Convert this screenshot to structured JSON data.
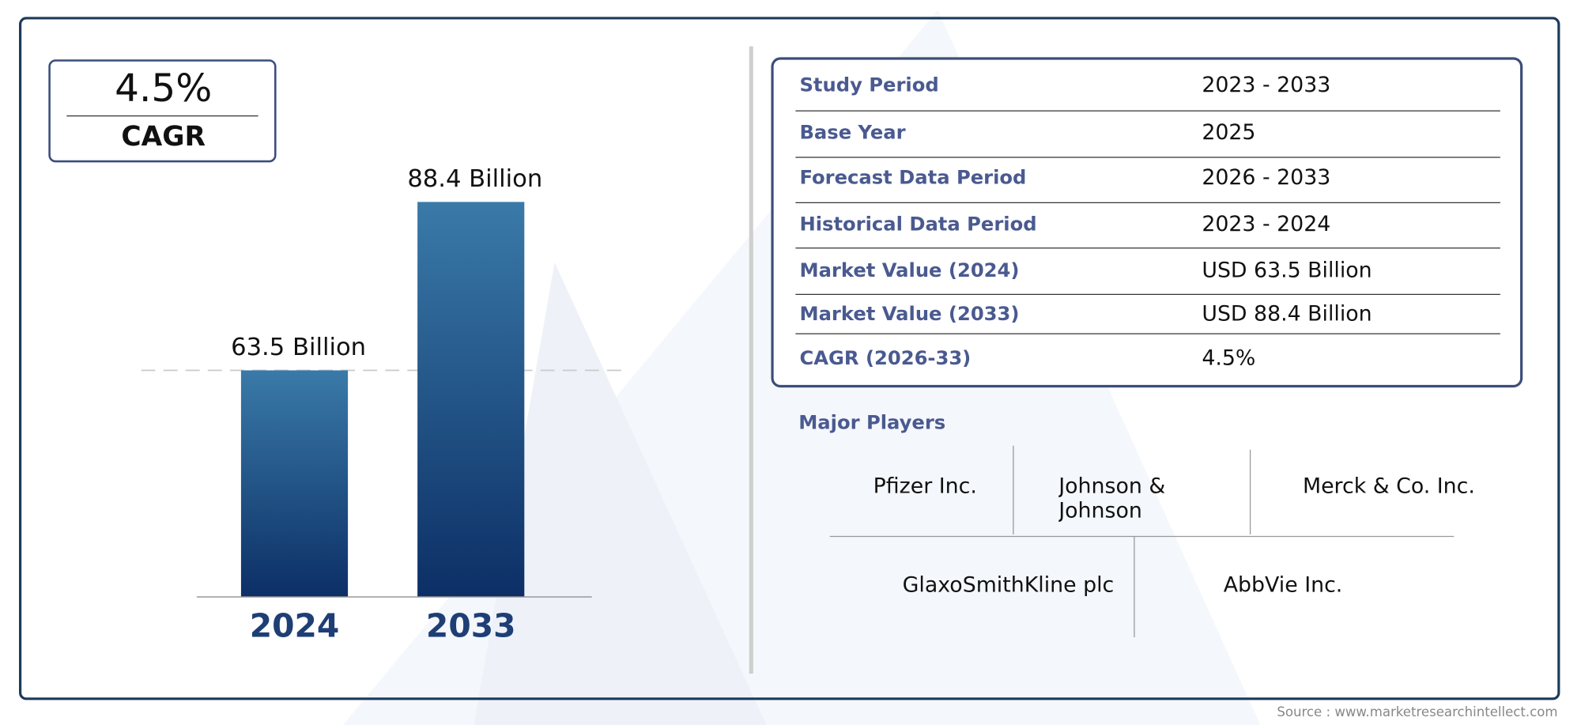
{
  "chart_data": {
    "type": "bar",
    "categories": [
      "2024",
      "2033"
    ],
    "values": [
      63.5,
      88.4
    ],
    "value_labels": [
      "63.5 Billion",
      "88.4 Billion"
    ],
    "ylim": [
      30,
      95
    ],
    "color": "#0c2f66"
  },
  "cagr": {
    "value": "4.5%",
    "label": "CAGR"
  },
  "table": {
    "rows": [
      [
        "Study Period",
        "2023 - 2033"
      ],
      [
        "Base Year",
        "2025"
      ],
      [
        "Forecast Data Period",
        "2026 - 2033"
      ],
      [
        "Historical Data Period",
        "2023 - 2024"
      ],
      [
        "Market Value (2024)",
        "USD 63.5 Billion"
      ],
      [
        "Market Value (2033)",
        "USD 88.4 Billion"
      ],
      [
        "CAGR (2026-33)",
        "4.5%"
      ]
    ]
  },
  "players": {
    "title": "Major Players",
    "names": [
      "Pfizer Inc.",
      "Johnson & Johnson",
      "Merck & Co. Inc.",
      "GlaxoSmithKline plc",
      "AbbVie Inc."
    ]
  },
  "source": "Source : www.marketresearchintellect.com"
}
